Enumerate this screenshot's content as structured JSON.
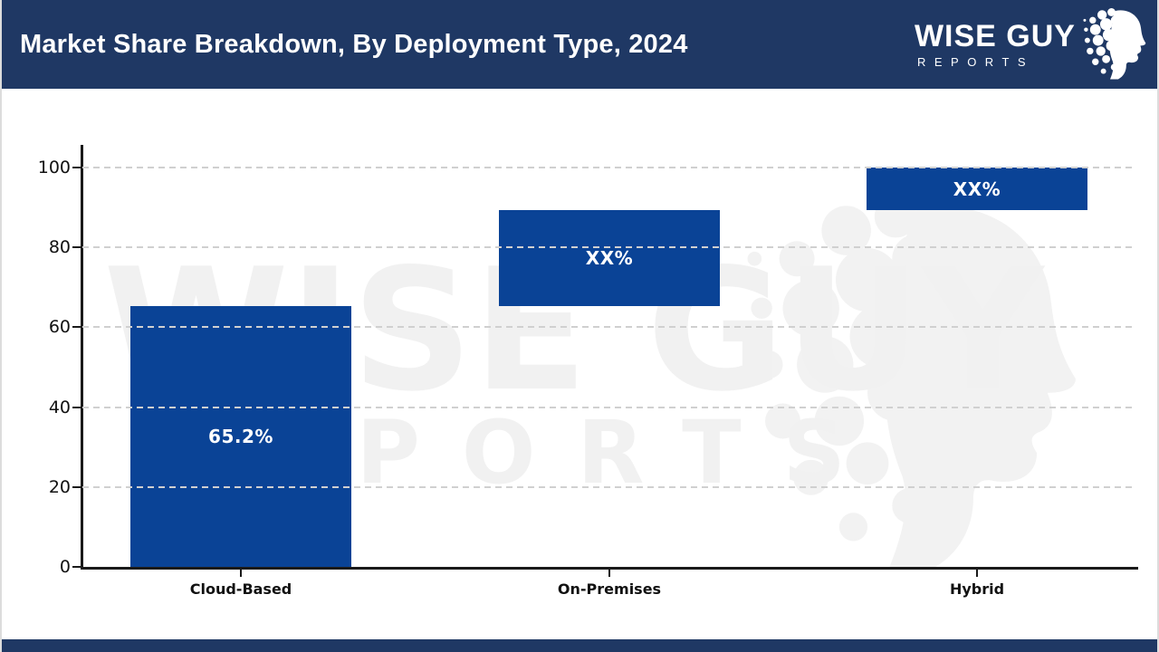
{
  "header": {
    "title": "Market Share Breakdown, By Deployment Type, 2024",
    "logo": {
      "name": "WISE GUY",
      "tagline": "REPORTS"
    }
  },
  "watermark": {
    "line1": "WISE GUY",
    "line2": "REPORTS"
  },
  "chart_data": {
    "type": "bar",
    "subtype": "waterfall-cumulative",
    "title": "Market Share Breakdown, By Deployment Type, 2024",
    "categories": [
      "Cloud-Based",
      "On-Premises",
      "Hybrid"
    ],
    "segments": [
      {
        "category": "Cloud-Based",
        "start": 0,
        "end": 65.2,
        "label": "65.2%"
      },
      {
        "category": "On-Premises",
        "start": 65.2,
        "end": 89.3,
        "label": "XX%"
      },
      {
        "category": "Hybrid",
        "start": 89.3,
        "end": 100,
        "label": "XX%"
      }
    ],
    "yticks": [
      0,
      20,
      40,
      60,
      80,
      100
    ],
    "ylim": [
      0,
      105
    ],
    "xlabel": "",
    "ylabel": "",
    "grid": "horizontal-dashed",
    "legend": "none",
    "bar_color": "#0A4396",
    "bar_label_color": "#FFFFFF"
  },
  "colors": {
    "header_bg": "#1F3864",
    "footer_bg": "#1F3864",
    "bar": "#0A4396",
    "grid": "#D0D0D0",
    "axis": "#1A1A1A",
    "watermark": "#F1F1F1"
  }
}
